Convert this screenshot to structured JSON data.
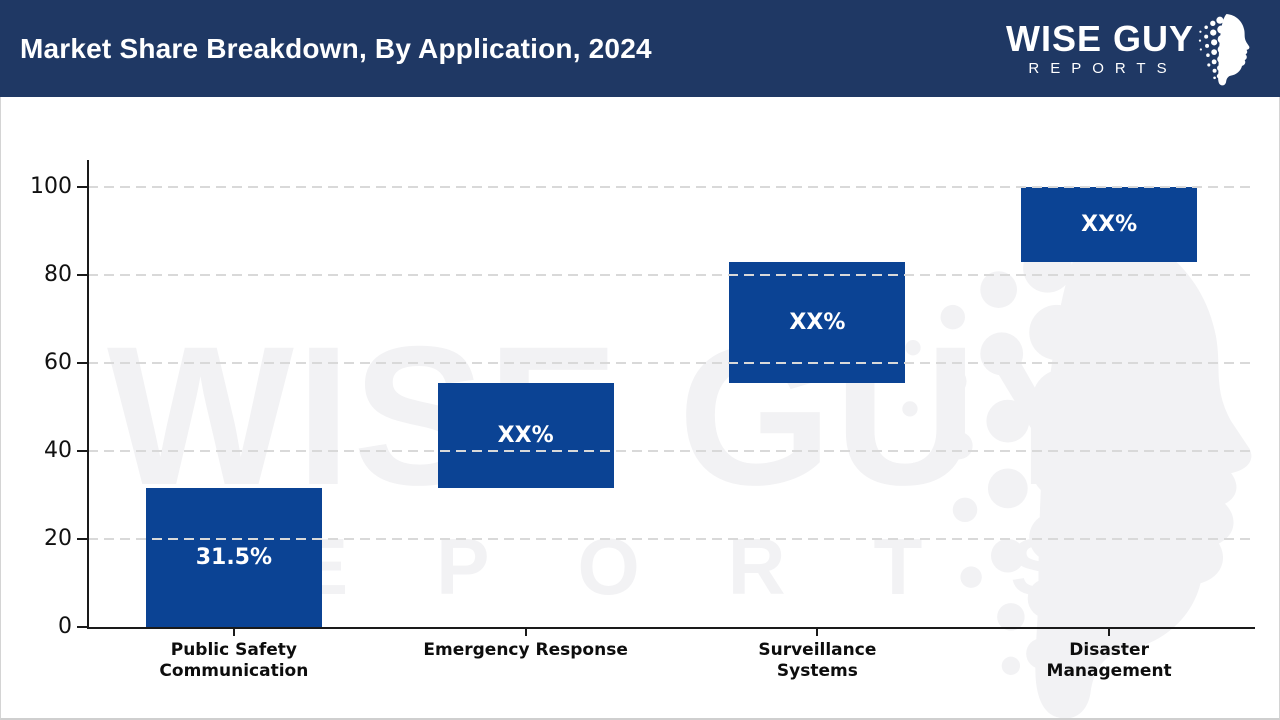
{
  "header": {
    "title": "Market Share Breakdown, By Application, 2024",
    "logo": {
      "wordmark": "WISE GUY",
      "subtext": "REPORTS"
    }
  },
  "watermark": {
    "wordmark": "WISE GUY",
    "subtext": "REPORTS"
  },
  "colors": {
    "header_bg": "#1f3864",
    "bar": "#0b4394",
    "bar_label": "#ffffff",
    "grid": "#d9d9d9",
    "axis": "#1a1a1a",
    "watermark": "#f2f2f4"
  },
  "chart_data": {
    "type": "bar",
    "variant": "floating-segment-waterfall",
    "title": "Market Share Breakdown, By Application, 2024",
    "categories": [
      [
        "Public Safety",
        "Communication"
      ],
      [
        "Emergency Response"
      ],
      [
        "Surveillance",
        "Systems"
      ],
      [
        "Disaster",
        "Management"
      ]
    ],
    "segments": [
      {
        "category": "Public Safety Communication",
        "from": 0,
        "to": 31.5,
        "label": "31.5%"
      },
      {
        "category": "Emergency Response",
        "from": 31.5,
        "to": 55.4,
        "label": "XX%"
      },
      {
        "category": "Surveillance Systems",
        "from": 55.4,
        "to": 82.9,
        "label": "XX%"
      },
      {
        "category": "Disaster Management",
        "from": 82.9,
        "to": 100,
        "label": "XX%"
      }
    ],
    "xlabel": "",
    "ylabel": "",
    "ylim": [
      0,
      100
    ],
    "yticks": [
      0,
      20,
      40,
      60,
      80,
      100
    ],
    "grid": "horizontal-dashed",
    "legend": "none"
  }
}
